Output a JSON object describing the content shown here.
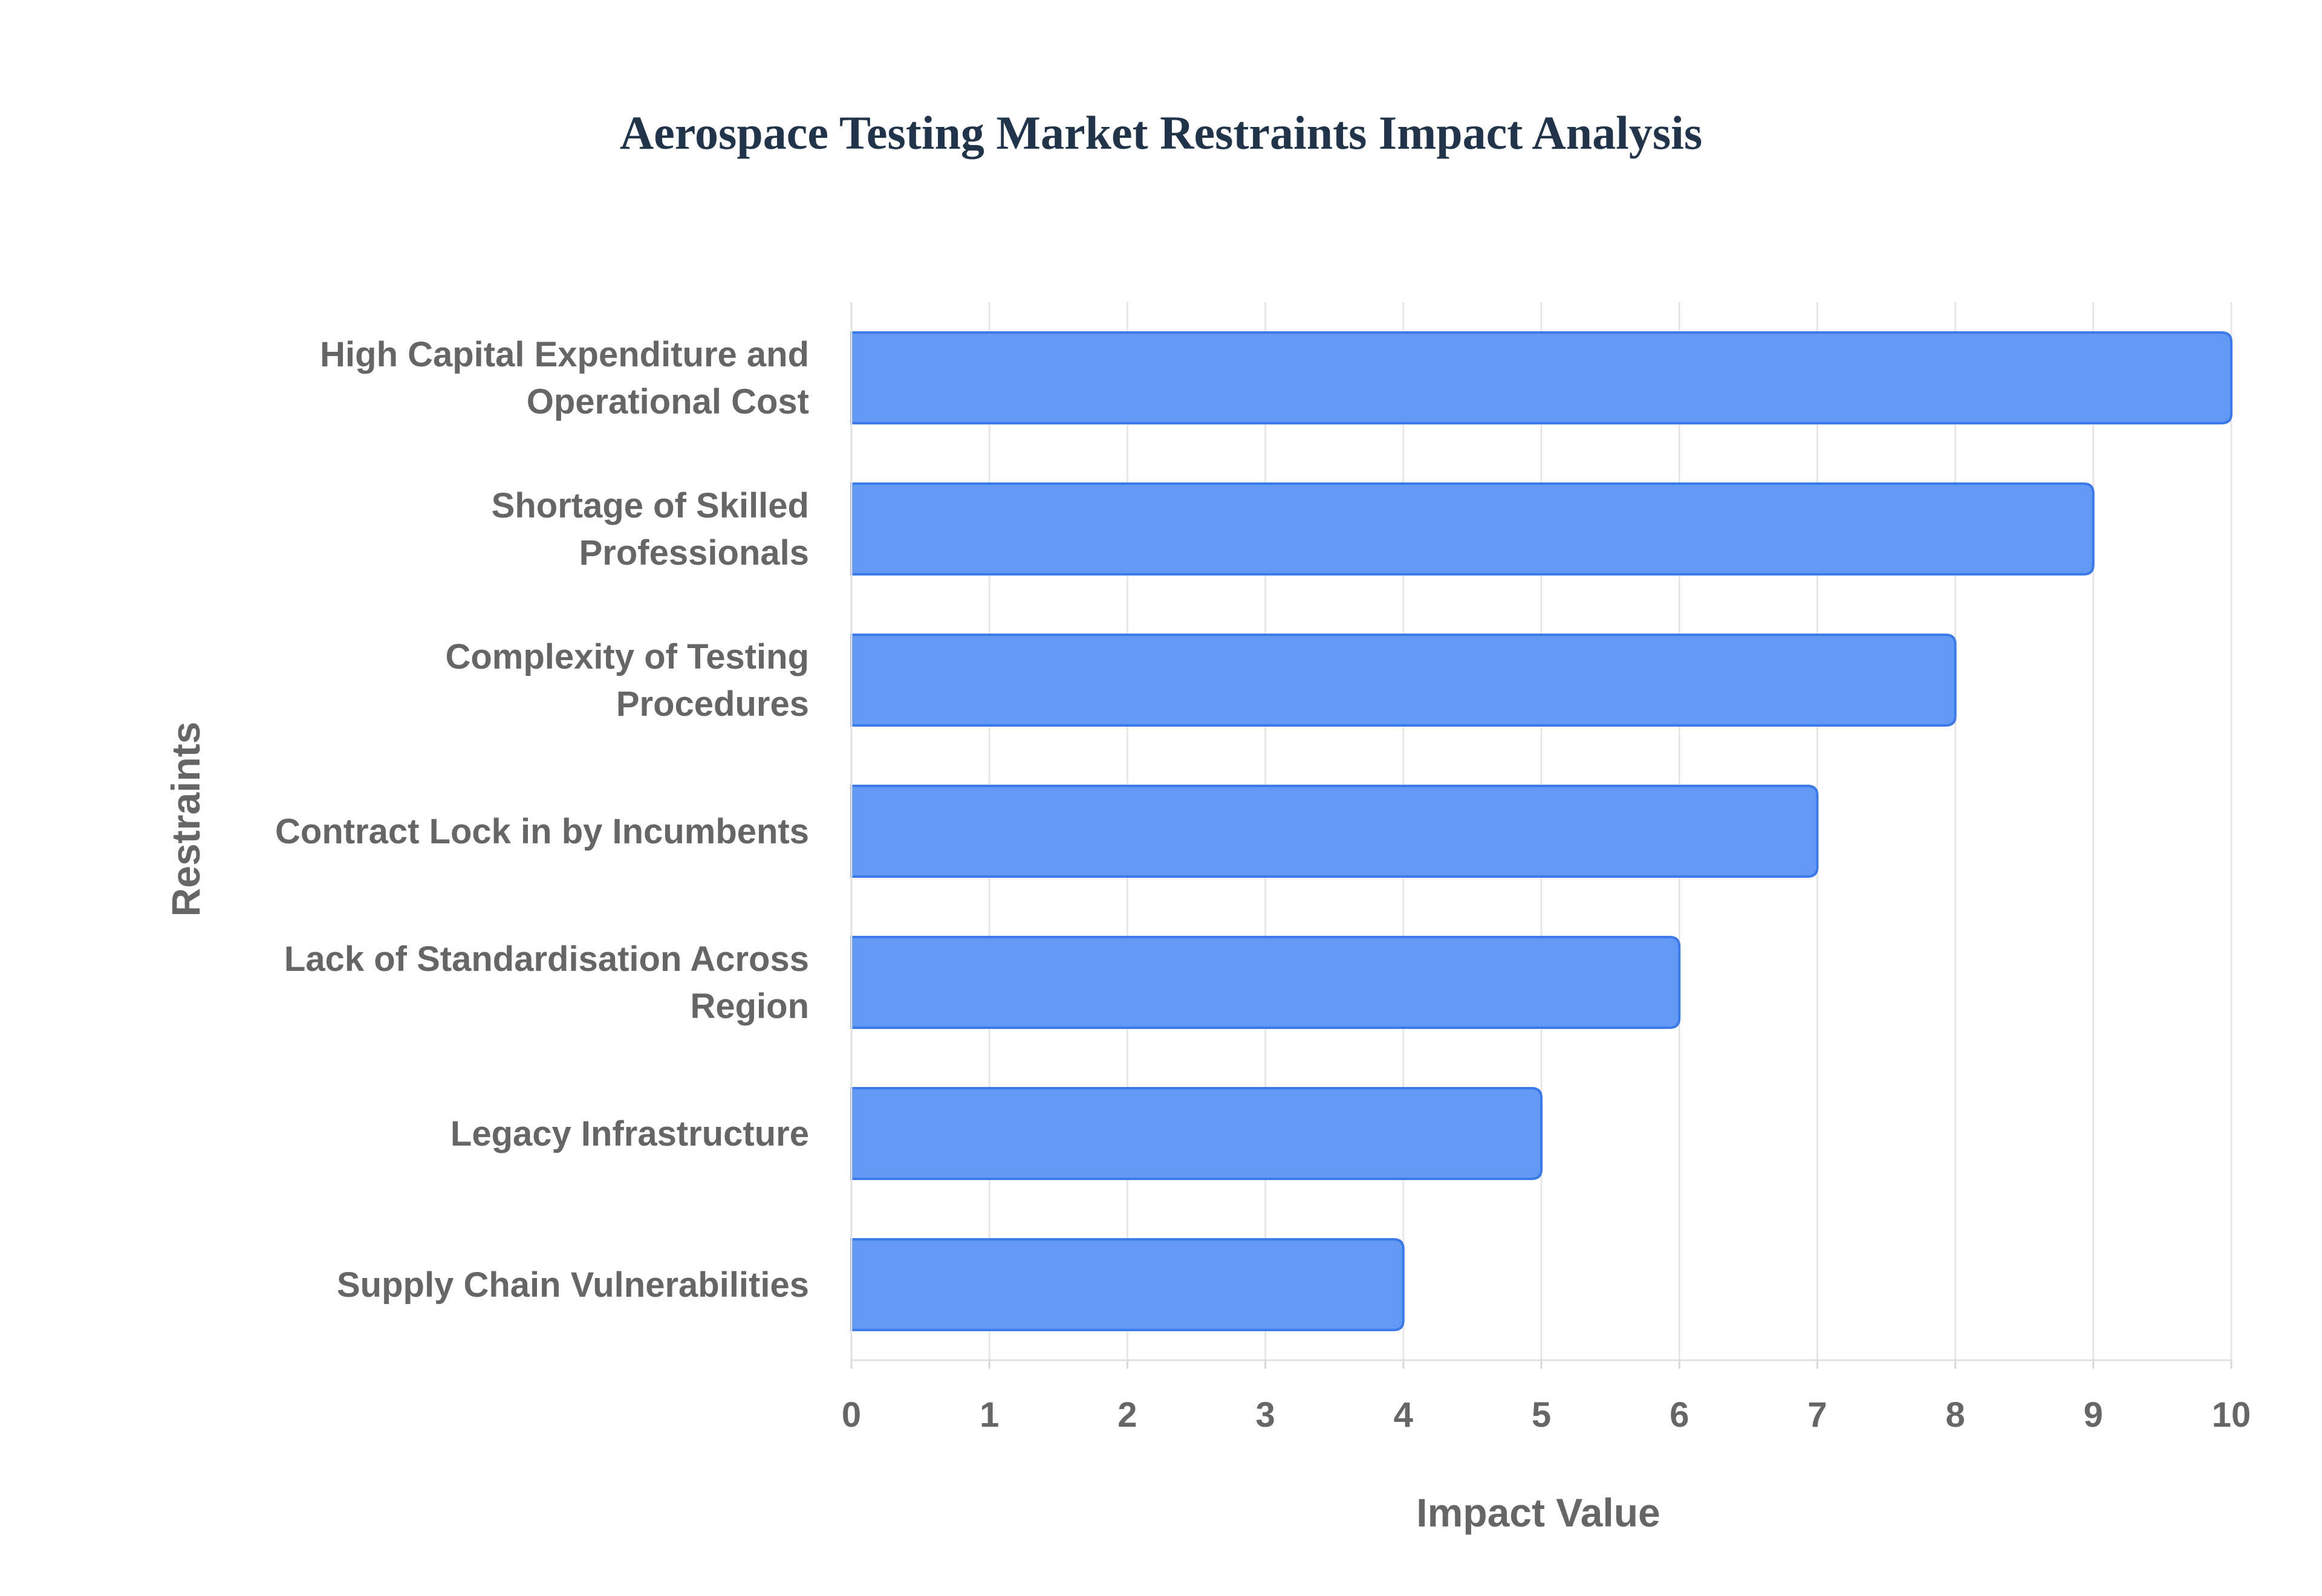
{
  "chart_data": {
    "type": "bar",
    "orientation": "horizontal",
    "title": "Aerospace Testing Market Restraints Impact Analysis",
    "xlabel": "Impact Value",
    "ylabel": "Restraints",
    "xlim": [
      0,
      10
    ],
    "x_ticks": [
      "0",
      "1",
      "2",
      "3",
      "4",
      "5",
      "6",
      "7",
      "8",
      "9",
      "10"
    ],
    "grid": true,
    "bar_color": "#6199f5",
    "bar_border_color": "#3b7ae8",
    "categories": [
      [
        "High Capital Expenditure and",
        "Operational Cost"
      ],
      [
        "Shortage of Skilled",
        "Professionals"
      ],
      [
        "Complexity of Testing",
        "Procedures"
      ],
      [
        "Contract Lock in by Incumbents"
      ],
      [
        "Lack of Standardisation Across",
        "Region"
      ],
      [
        "Legacy Infrastructure"
      ],
      [
        "Supply Chain Vulnerabilities"
      ]
    ],
    "values": [
      10,
      9,
      8,
      7,
      6,
      5,
      4
    ]
  }
}
